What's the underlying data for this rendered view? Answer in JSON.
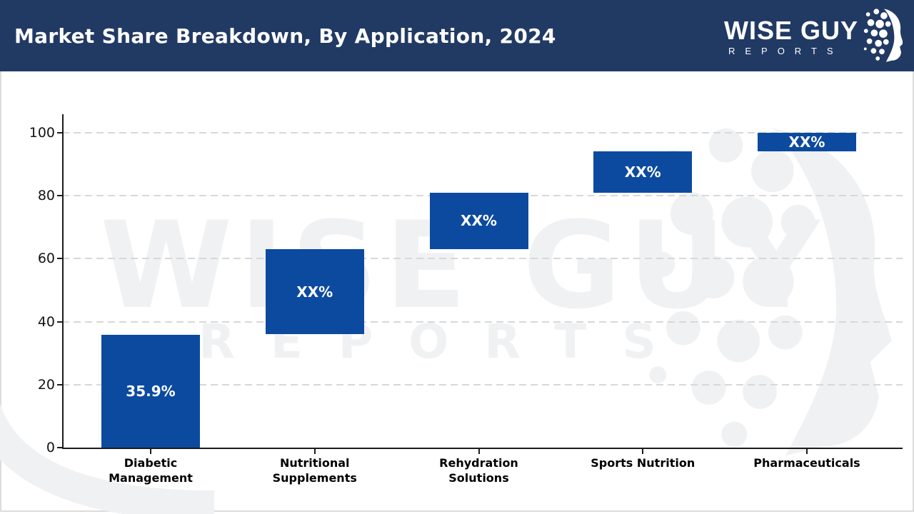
{
  "header": {
    "title": "Market Share Breakdown, By Application, 2024",
    "logo": {
      "name": "WISE GUY",
      "sub": "REPORTS"
    }
  },
  "watermark": {
    "name": "WISE GUY",
    "sub": "REPORTS"
  },
  "chart_data": {
    "type": "bar",
    "subtype": "floating-waterfall",
    "title": "Market Share Breakdown, By Application, 2024",
    "categories": [
      "Diabetic\nManagement",
      "Nutritional\nSupplements",
      "Rehydration\nSolutions",
      "Sports Nutrition",
      "Pharmaceuticals"
    ],
    "series": [
      {
        "name": "Market Share (%)",
        "segments": [
          {
            "category": "Diabetic Management",
            "start": 0,
            "end": 35.9,
            "label": "35.9%"
          },
          {
            "category": "Nutritional Supplements",
            "start": 36,
            "end": 63,
            "label": "XX%"
          },
          {
            "category": "Rehydration Solutions",
            "start": 63,
            "end": 81,
            "label": "XX%"
          },
          {
            "category": "Sports Nutrition",
            "start": 81,
            "end": 94,
            "label": "XX%"
          },
          {
            "category": "Pharmaceuticals",
            "start": 94,
            "end": 100,
            "label": "XX%"
          }
        ]
      }
    ],
    "ylim": [
      0,
      100
    ],
    "yticks": [
      0,
      20,
      40,
      60,
      80,
      100
    ],
    "xlabel": "",
    "ylabel": "",
    "grid": {
      "horizontal": true,
      "style": "dashed"
    },
    "legend": "none",
    "bar_color": "#0c4aa0",
    "bar_label_color": "#ffffff"
  },
  "colors": {
    "header_bg": "#213a64",
    "bar": "#0c4aa0",
    "grid": "#d8d8d8",
    "axis": "#1c1c1c",
    "watermark": "#f0f1f3",
    "frame_border": "#dcdcdc"
  }
}
